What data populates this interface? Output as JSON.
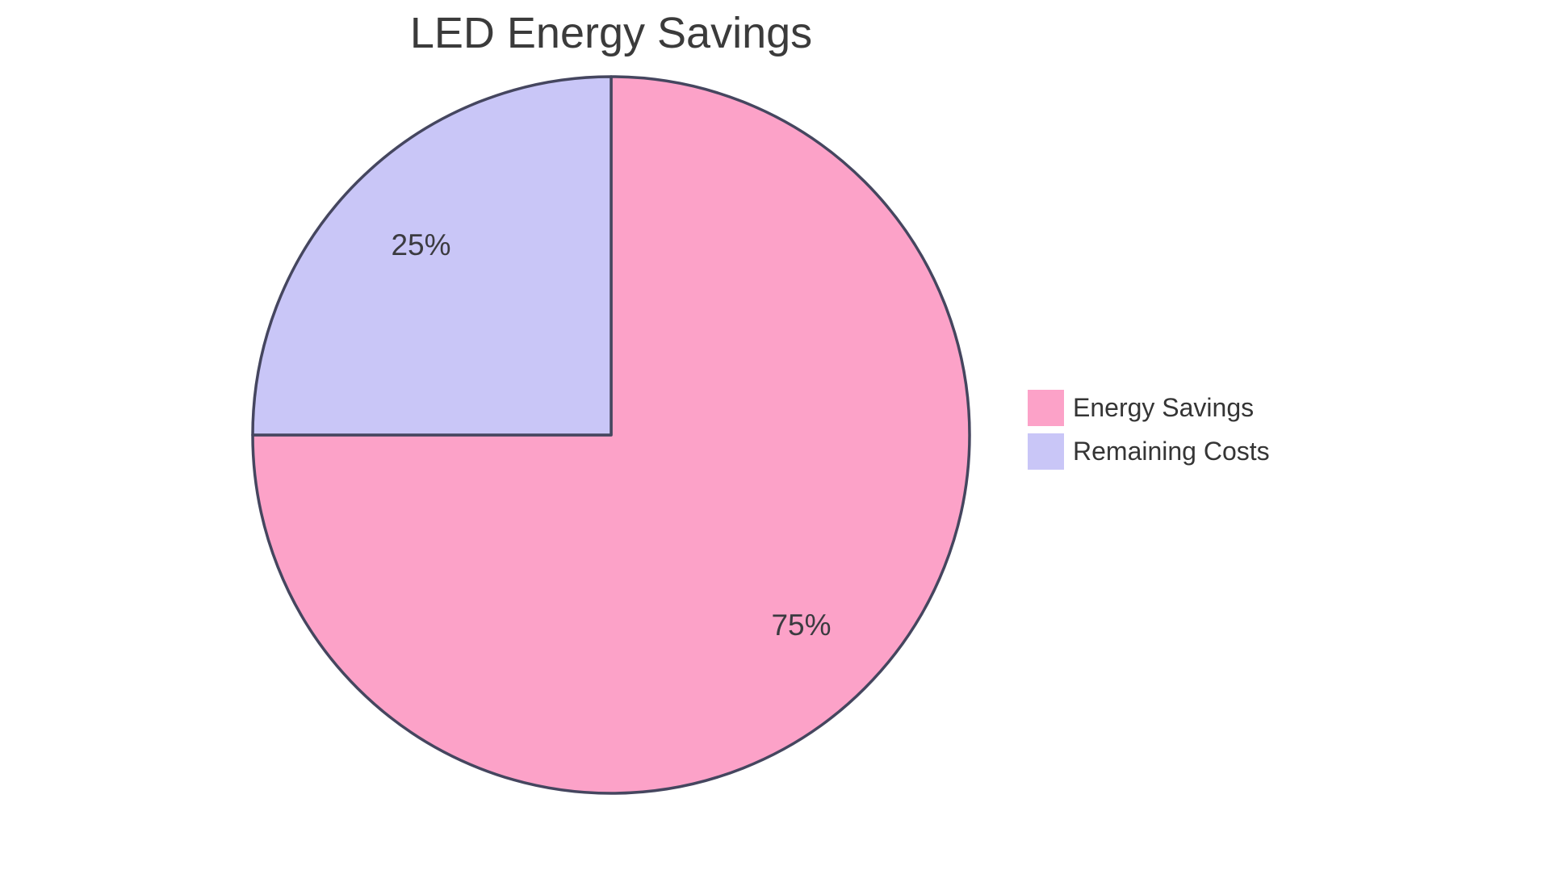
{
  "chart": {
    "title": "LED Energy Savings"
  },
  "chart_data": {
    "type": "pie",
    "title": "LED Energy Savings",
    "categories": [
      "Energy Savings",
      "Remaining Costs"
    ],
    "values": [
      75,
      25
    ],
    "slices": [
      {
        "label": "Energy Savings",
        "value": 75,
        "display": "75%",
        "color": "#FCA2C8"
      },
      {
        "label": "Remaining Costs",
        "value": 25,
        "display": "25%",
        "color": "#C9C6F7"
      }
    ],
    "start_angle": "top",
    "direction": "clockwise",
    "legend_position": "right",
    "slice_border_color": "#45465F",
    "label_color": "#3B3B40",
    "background": "#FFFFFF"
  },
  "legend": {
    "items": [
      {
        "label": "Energy Savings",
        "color": "#FCA2C8"
      },
      {
        "label": "Remaining Costs",
        "color": "#C9C6F7"
      }
    ]
  }
}
